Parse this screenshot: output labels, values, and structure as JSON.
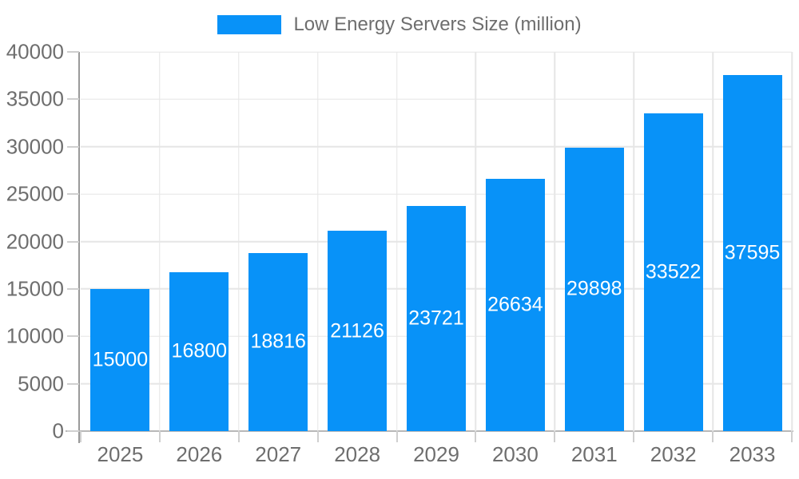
{
  "legend": {
    "label": "Low Energy Servers Size (million)"
  },
  "chart_data": {
    "type": "bar",
    "series_name": "Low Energy Servers Size (million)",
    "categories": [
      "2025",
      "2026",
      "2027",
      "2028",
      "2029",
      "2030",
      "2031",
      "2032",
      "2033"
    ],
    "values": [
      15000,
      16800,
      18816,
      21126,
      23721,
      26634,
      29898,
      33522,
      37595
    ],
    "xlabel": "",
    "ylabel": "",
    "ylim": [
      0,
      40000
    ],
    "yticks": [
      0,
      5000,
      10000,
      15000,
      20000,
      25000,
      30000,
      35000,
      40000
    ],
    "grid": true,
    "legend_position": "top-center",
    "value_labels_inside_bars": true,
    "bar_color": "#0892f8",
    "value_label_color": "#ffffff",
    "axis_text_color": "#6e6e6e"
  }
}
